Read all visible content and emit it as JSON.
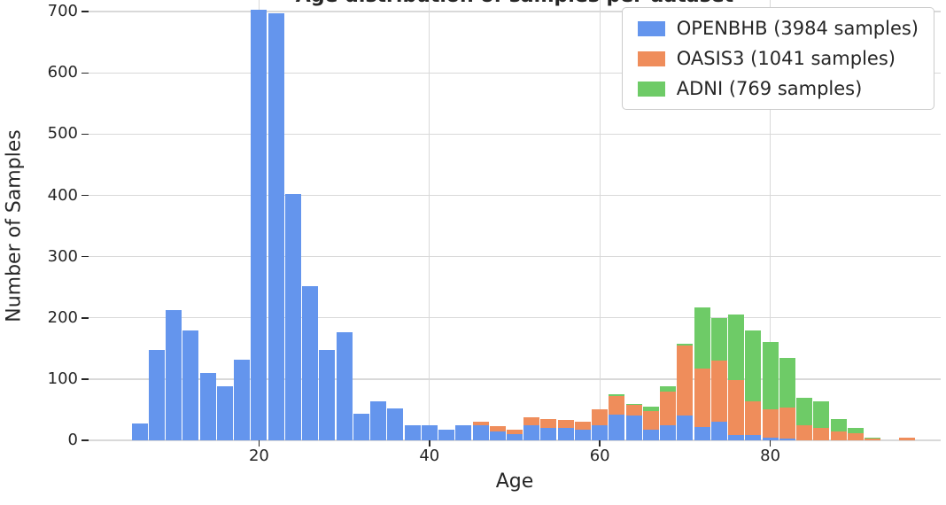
{
  "colors": {
    "background": "#ffffff",
    "grid": "#d9d9d9",
    "tick": "#262626",
    "text": "#262626",
    "legend_border": "#cccccc",
    "series_blue": "#6495ed",
    "series_orange": "#ef8d5b",
    "series_green": "#6ecb67"
  },
  "chart_data": {
    "type": "bar",
    "subtype": "stacked-histogram",
    "title": "Age distribution of samples per dataset",
    "title_note": "title is clipped at top edge of screenshot; only letter bottoms visible",
    "xlabel": "Age",
    "ylabel": "Number of Samples",
    "xlim": [
      0,
      100
    ],
    "ylim": [
      0,
      719
    ],
    "xticks": [
      20,
      40,
      60,
      80
    ],
    "yticks": [
      0,
      100,
      200,
      300,
      400,
      500,
      600,
      700
    ],
    "grid": true,
    "legend_position": "upper right",
    "bin_width": 2,
    "bin_starts": [
      5,
      7,
      9,
      11,
      13,
      15,
      17,
      19,
      21,
      23,
      25,
      27,
      29,
      31,
      33,
      35,
      37,
      39,
      41,
      43,
      45,
      47,
      49,
      51,
      53,
      55,
      57,
      59,
      61,
      63,
      65,
      67,
      69,
      71,
      73,
      75,
      77,
      79,
      81,
      83,
      85,
      87,
      89,
      91,
      93,
      95
    ],
    "series": [
      {
        "name": "OPENBHB (3984 samples)",
        "color": "#6495ed",
        "values": [
          27,
          147,
          213,
          179,
          110,
          88,
          132,
          703,
          697,
          402,
          252,
          147,
          177,
          44,
          63,
          52,
          25,
          25,
          17,
          25,
          25,
          15,
          10,
          25,
          20,
          20,
          18,
          25,
          42,
          40,
          18,
          25,
          40,
          22,
          30,
          8,
          8,
          5,
          3,
          0,
          0,
          0,
          0,
          0,
          0,
          0
        ]
      },
      {
        "name": "OASIS3 (1041 samples)",
        "color": "#ef8d5b",
        "values": [
          0,
          0,
          0,
          0,
          0,
          0,
          0,
          0,
          0,
          0,
          0,
          0,
          0,
          0,
          0,
          0,
          0,
          0,
          0,
          0,
          5,
          8,
          8,
          13,
          15,
          13,
          12,
          25,
          30,
          18,
          30,
          55,
          115,
          95,
          100,
          90,
          55,
          45,
          50,
          25,
          20,
          15,
          12,
          3,
          0,
          4
        ]
      },
      {
        "name": "ADNI (769 samples)",
        "color": "#6ecb67",
        "values": [
          0,
          0,
          0,
          0,
          0,
          0,
          0,
          0,
          0,
          0,
          0,
          0,
          0,
          0,
          0,
          0,
          0,
          0,
          0,
          0,
          0,
          0,
          0,
          0,
          0,
          0,
          0,
          0,
          3,
          2,
          7,
          8,
          2,
          100,
          70,
          107,
          117,
          110,
          82,
          45,
          43,
          20,
          8,
          2,
          0,
          0
        ]
      }
    ]
  }
}
